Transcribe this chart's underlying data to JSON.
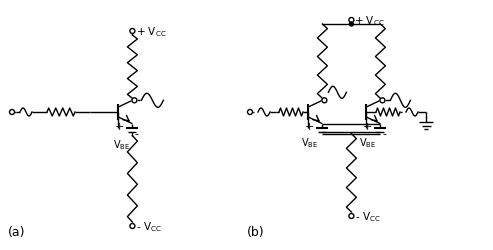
{
  "background": "#ffffff",
  "label_a": "(a)",
  "label_b": "(b)",
  "line_color": "#000000"
}
